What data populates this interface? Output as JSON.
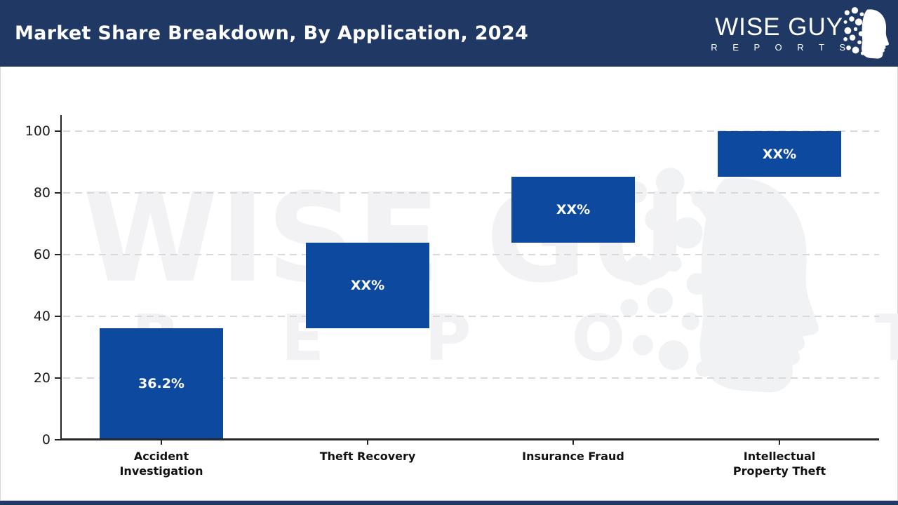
{
  "header": {
    "title": "Market Share Breakdown, By Application, 2024",
    "background_color": "#1f3864",
    "logo": {
      "line1": "WISE GUY",
      "line2": "R E P O R T S"
    }
  },
  "watermark": {
    "line1": "WISE GUY",
    "line2": "R E P O R T S"
  },
  "chart_data": {
    "type": "bar",
    "subtype": "waterfall",
    "title": "Market Share Breakdown, By Application, 2024",
    "categories": [
      "Accident Investigation",
      "Theft Recovery",
      "Insurance Fraud",
      "Intellectual Property Theft"
    ],
    "category_label_lines": [
      [
        "Accident",
        "Investigation"
      ],
      [
        "Theft Recovery"
      ],
      [
        "Insurance Fraud"
      ],
      [
        "Intellectual",
        "Property Theft"
      ]
    ],
    "segments": [
      {
        "category": "Accident Investigation",
        "start": 0,
        "end": 36.2,
        "label": "36.2%"
      },
      {
        "category": "Theft Recovery",
        "start": 36.2,
        "end": 63.8,
        "label": "XX%"
      },
      {
        "category": "Insurance Fraud",
        "start": 63.8,
        "end": 85.2,
        "label": "XX%"
      },
      {
        "category": "Intellectual Property Theft",
        "start": 85.2,
        "end": 100,
        "label": "XX%"
      }
    ],
    "ylim": [
      0,
      100
    ],
    "yticks": [
      0,
      20,
      40,
      60,
      80,
      100
    ],
    "grid": "dashed-horizontal",
    "legend": "none",
    "xlabel": "",
    "ylabel": "",
    "bar_color": "#0d4a9f",
    "bar_label_color": "#ffffff",
    "axis_color": "#262626",
    "gridline_color": "#d9d9d9"
  }
}
